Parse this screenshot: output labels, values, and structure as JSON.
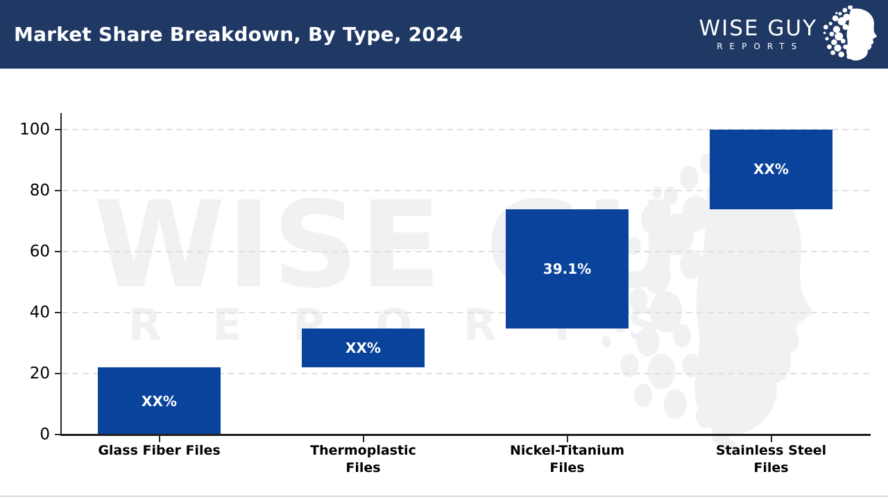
{
  "header": {
    "title": "Market Share Breakdown, By Type, 2024",
    "logo": {
      "brand_line1": "WISE GUY",
      "brand_line2": "REPORTS"
    }
  },
  "watermark": {
    "brand_line1": "WISE GU",
    "brand_line2": "R E P O R T S"
  },
  "chart_data": {
    "type": "bar",
    "subtype": "waterfall",
    "title": "Market Share Breakdown, By Type, 2024",
    "categories": [
      "Glass Fiber Files",
      "Thermoplastic Files",
      "Nickel-Titanium Files",
      "Stainless Steel Files"
    ],
    "bars": [
      {
        "category": "Glass Fiber Files",
        "category_lines": "Glass Fiber Files",
        "start": 0,
        "end": 22,
        "increment": 22,
        "value_label": "XX%"
      },
      {
        "category": "Thermoplastic Files",
        "category_lines": "Thermoplastic\nFiles",
        "start": 22,
        "end": 34.8,
        "increment": 12.8,
        "value_label": "XX%"
      },
      {
        "category": "Nickel-Titanium Files",
        "category_lines": "Nickel-Titanium\nFiles",
        "start": 34.8,
        "end": 73.9,
        "increment": 39.1,
        "value_label": "39.1%"
      },
      {
        "category": "Stainless Steel Files",
        "category_lines": "Stainless Steel\nFiles",
        "start": 73.9,
        "end": 100,
        "increment": 26.1,
        "value_label": "XX%"
      }
    ],
    "ylim": [
      0,
      100
    ],
    "yticks": [
      0,
      20,
      40,
      60,
      80,
      100
    ],
    "grid": "horizontal-dashed",
    "legend": "none",
    "colors": {
      "bar": "#09439c",
      "bar_label": "#ffffff",
      "header_bg": "#1f3864",
      "grid": "#e0e0e0",
      "axis": "#262626",
      "watermark": "#f1f1f4"
    }
  }
}
